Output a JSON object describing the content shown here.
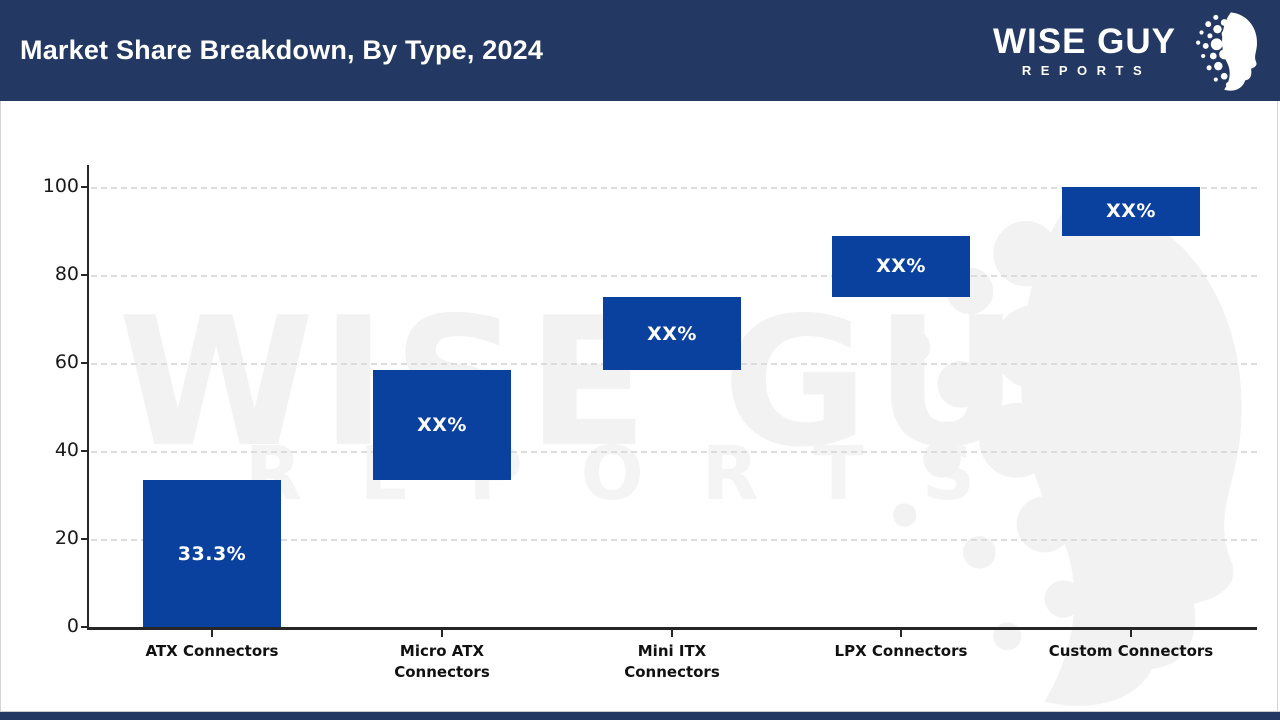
{
  "header": {
    "title": "Market Share Breakdown, By Type, 2024",
    "logo_line1": "WISE GUY",
    "logo_line2": "REPORTS"
  },
  "watermark": {
    "line1": "WISE GUY",
    "line2": "REPORTS"
  },
  "colors": {
    "header_bg": "#233862",
    "bar": "#0b419e",
    "gridline": "#dcdcdc",
    "axis": "#262626",
    "watermark": "#f2f2f2",
    "bar_label": "#ffffff"
  },
  "chart_data": {
    "type": "bar",
    "subtype": "waterfall-stacked",
    "title": "Market Share Breakdown, By Type, 2024",
    "xlabel": "",
    "ylabel": "",
    "ylim": [
      0,
      100
    ],
    "yticks": [
      0,
      20,
      40,
      60,
      80,
      100
    ],
    "grid": "horizontal-dashed",
    "legend": "none",
    "categories": [
      "ATX Connectors",
      "Micro ATX\nConnectors",
      "Mini ITX\nConnectors",
      "LPX Connectors",
      "Custom Connectors"
    ],
    "bars": [
      {
        "category": "ATX Connectors",
        "start": 0,
        "end": 33.3,
        "label": "33.3%"
      },
      {
        "category": "Micro ATX Connectors",
        "start": 33.3,
        "end": 58.3,
        "label": "XX%"
      },
      {
        "category": "Mini ITX Connectors",
        "start": 58.3,
        "end": 75.0,
        "label": "XX%"
      },
      {
        "category": "LPX Connectors",
        "start": 75.0,
        "end": 88.9,
        "label": "XX%"
      },
      {
        "category": "Custom Connectors",
        "start": 88.9,
        "end": 100.0,
        "label": "XX%"
      }
    ]
  }
}
